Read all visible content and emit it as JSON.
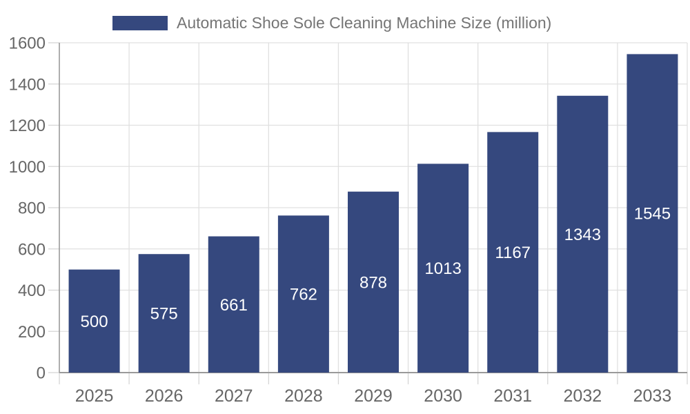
{
  "legend": {
    "label": "Automatic Shoe Sole Cleaning Machine Size (million)"
  },
  "chart_data": {
    "type": "bar",
    "title": "Automatic Shoe Sole Cleaning Machine Size (million)",
    "series_name": "Automatic Shoe Sole Cleaning Machine Size (million)",
    "categories": [
      "2025",
      "2026",
      "2027",
      "2028",
      "2029",
      "2030",
      "2031",
      "2032",
      "2033"
    ],
    "values": [
      500,
      575,
      661,
      762,
      878,
      1013,
      1167,
      1343,
      1545
    ],
    "xlabel": "",
    "ylabel": "",
    "ylim": [
      0,
      1600
    ],
    "ytick_step": 200,
    "yticks": [
      0,
      200,
      400,
      600,
      800,
      1000,
      1200,
      1400,
      1600
    ],
    "grid": true,
    "legend_position": "top",
    "value_labels": "inside-center",
    "colors": {
      "bar": "#35487E",
      "value_label": "#FFFFFF",
      "axis_text": "#666666",
      "legend_text": "#757575",
      "grid": "#E0E0E0",
      "tick": "#D6D6D6",
      "axis_line": "#9A9A9A"
    }
  }
}
